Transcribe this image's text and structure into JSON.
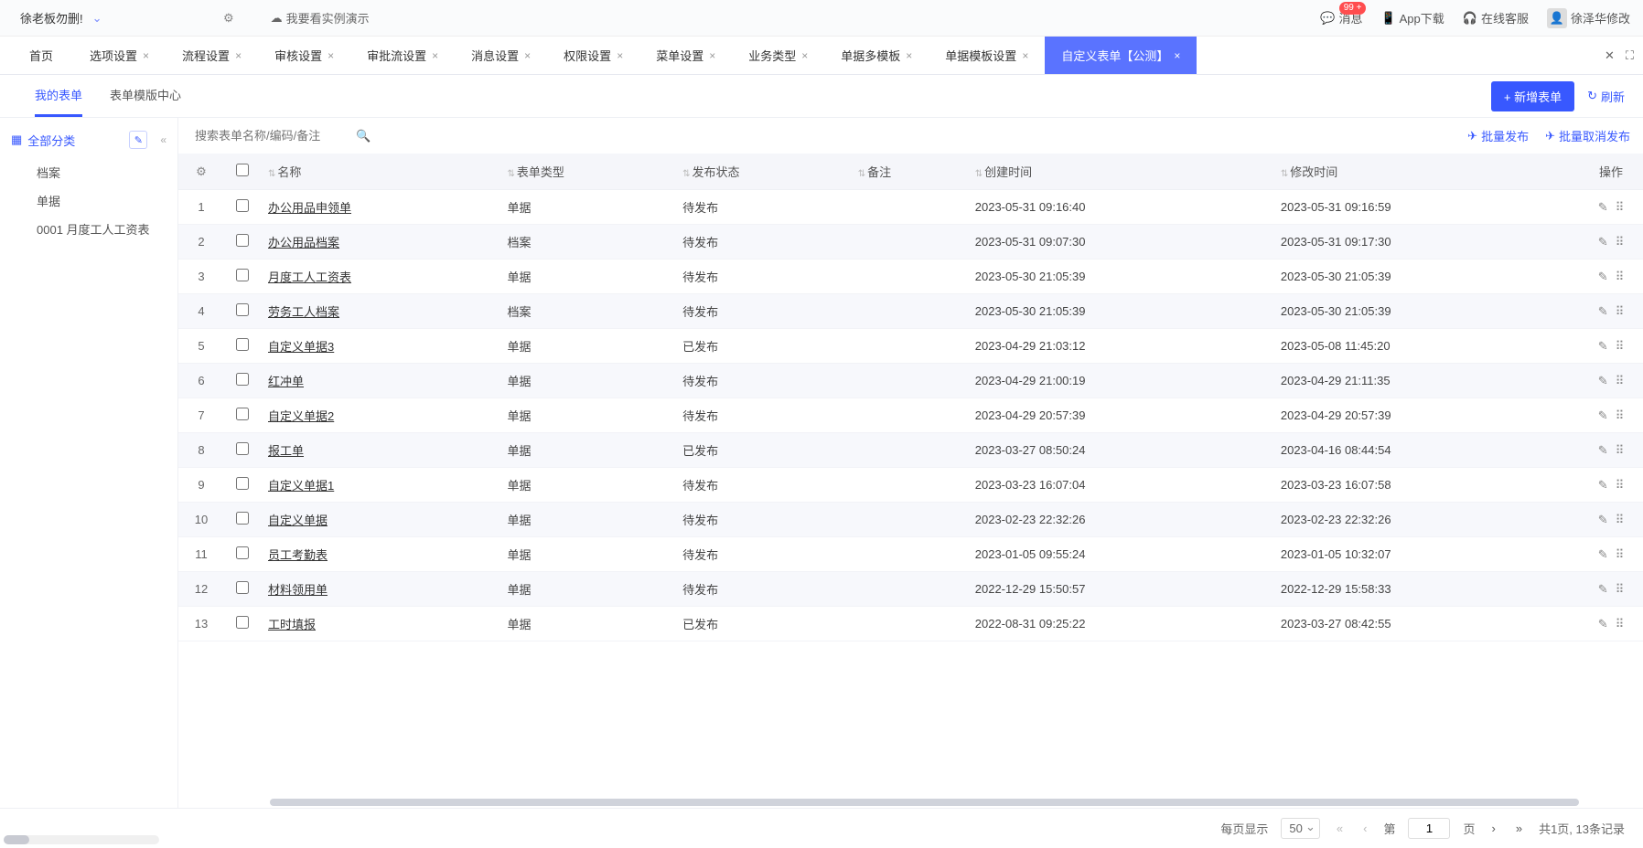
{
  "colors": {
    "accent": "#3858ff",
    "badge": "#ff4d4f",
    "row_alt": "#f7f8fc",
    "header_bg": "#f5f6fa",
    "border": "#eef0f4"
  },
  "topbar": {
    "org_name": "徐老板勿删!",
    "demo_text": "我要看实例演示",
    "msg": {
      "label": "消息",
      "badge": "99 +"
    },
    "app": "App下载",
    "service": "在线客服",
    "user": "徐泽华修改"
  },
  "tabs": {
    "home": "首页",
    "items": [
      {
        "label": "选项设置",
        "closable": true
      },
      {
        "label": "流程设置",
        "closable": true
      },
      {
        "label": "审核设置",
        "closable": true
      },
      {
        "label": "审批流设置",
        "closable": true
      },
      {
        "label": "消息设置",
        "closable": true
      },
      {
        "label": "权限设置",
        "closable": true
      },
      {
        "label": "菜单设置",
        "closable": true
      },
      {
        "label": "业务类型",
        "closable": true
      },
      {
        "label": "单据多模板",
        "closable": true
      },
      {
        "label": "单据模板设置",
        "closable": true
      },
      {
        "label": "自定义表单【公测】",
        "closable": true,
        "active": true
      }
    ]
  },
  "subtabs": {
    "mine": "我的表单",
    "center": "表单模版中心"
  },
  "actions": {
    "new": "+ 新增表单",
    "refresh": "刷新"
  },
  "sidebar": {
    "all": "全部分类",
    "items": [
      {
        "label": "档案"
      },
      {
        "label": "单据"
      },
      {
        "label": "0001 月度工人工资表"
      }
    ]
  },
  "toolbar": {
    "search_placeholder": "搜索表单名称/编码/备注",
    "batch_publish": "批量发布",
    "batch_unpublish": "批量取消发布"
  },
  "table": {
    "columns": {
      "name": "名称",
      "type": "表单类型",
      "status": "发布状态",
      "remark": "备注",
      "created": "创建时间",
      "modified": "修改时间",
      "ops": "操作"
    },
    "rows": [
      {
        "idx": 1,
        "name": "办公用品申领单",
        "type": "单据",
        "status": "待发布",
        "remark": "",
        "created": "2023-05-31 09:16:40",
        "modified": "2023-05-31 09:16:59"
      },
      {
        "idx": 2,
        "name": "办公用品档案",
        "type": "档案",
        "status": "待发布",
        "remark": "",
        "created": "2023-05-31 09:07:30",
        "modified": "2023-05-31 09:17:30"
      },
      {
        "idx": 3,
        "name": "月度工人工资表",
        "type": "单据",
        "status": "待发布",
        "remark": "",
        "created": "2023-05-30 21:05:39",
        "modified": "2023-05-30 21:05:39"
      },
      {
        "idx": 4,
        "name": "劳务工人档案",
        "type": "档案",
        "status": "待发布",
        "remark": "",
        "created": "2023-05-30 21:05:39",
        "modified": "2023-05-30 21:05:39"
      },
      {
        "idx": 5,
        "name": "自定义单据3",
        "type": "单据",
        "status": "已发布",
        "remark": "",
        "created": "2023-04-29 21:03:12",
        "modified": "2023-05-08 11:45:20"
      },
      {
        "idx": 6,
        "name": "红冲单",
        "type": "单据",
        "status": "待发布",
        "remark": "",
        "created": "2023-04-29 21:00:19",
        "modified": "2023-04-29 21:11:35"
      },
      {
        "idx": 7,
        "name": "自定义单据2",
        "type": "单据",
        "status": "待发布",
        "remark": "",
        "created": "2023-04-29 20:57:39",
        "modified": "2023-04-29 20:57:39"
      },
      {
        "idx": 8,
        "name": "报工单",
        "type": "单据",
        "status": "已发布",
        "remark": "",
        "created": "2023-03-27 08:50:24",
        "modified": "2023-04-16 08:44:54"
      },
      {
        "idx": 9,
        "name": "自定义单据1",
        "type": "单据",
        "status": "待发布",
        "remark": "",
        "created": "2023-03-23 16:07:04",
        "modified": "2023-03-23 16:07:58"
      },
      {
        "idx": 10,
        "name": "自定义单据",
        "type": "单据",
        "status": "待发布",
        "remark": "",
        "created": "2023-02-23 22:32:26",
        "modified": "2023-02-23 22:32:26"
      },
      {
        "idx": 11,
        "name": "员工考勤表",
        "type": "单据",
        "status": "待发布",
        "remark": "",
        "created": "2023-01-05 09:55:24",
        "modified": "2023-01-05 10:32:07"
      },
      {
        "idx": 12,
        "name": "材料领用单",
        "type": "单据",
        "status": "待发布",
        "remark": "",
        "created": "2022-12-29 15:50:57",
        "modified": "2022-12-29 15:58:33"
      },
      {
        "idx": 13,
        "name": "工时填报",
        "type": "单据",
        "status": "已发布",
        "remark": "",
        "created": "2022-08-31 09:25:22",
        "modified": "2023-03-27 08:42:55"
      }
    ]
  },
  "footer": {
    "per_page_label": "每页显示",
    "per_page_value": "50",
    "page_prefix": "第",
    "page_value": "1",
    "page_suffix": "页",
    "summary": "共1页, 13条记录"
  }
}
